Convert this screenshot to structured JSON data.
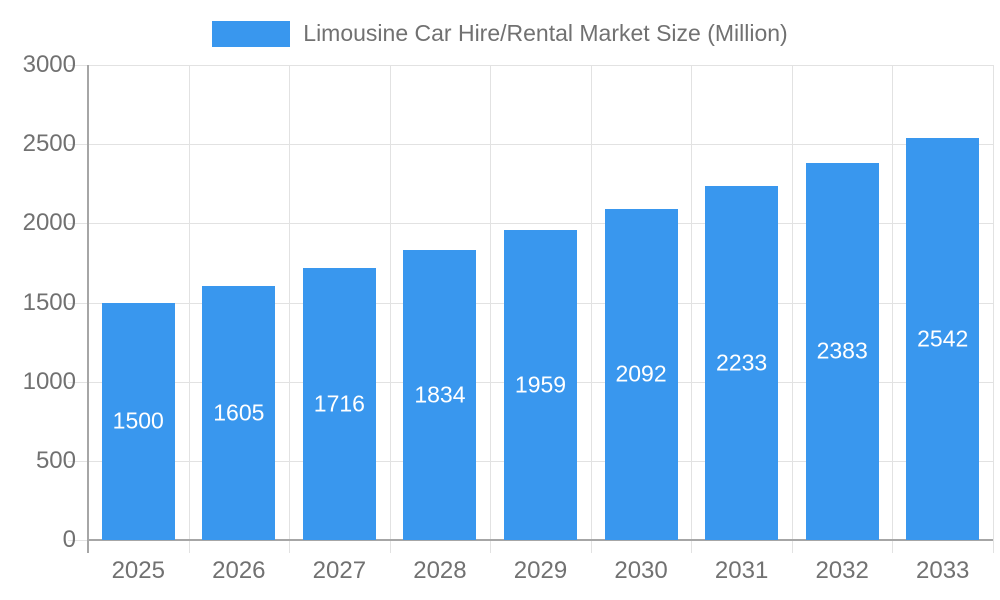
{
  "legend": {
    "label": "Limousine Car Hire/Rental Market Size (Million)"
  },
  "chart_data": {
    "type": "bar",
    "title": "Limousine Car Hire/Rental Market Size (Million)",
    "categories": [
      "2025",
      "2026",
      "2027",
      "2028",
      "2029",
      "2030",
      "2031",
      "2032",
      "2033"
    ],
    "values": [
      1500,
      1605,
      1716,
      1834,
      1959,
      2092,
      2233,
      2383,
      2542
    ],
    "xlabel": "",
    "ylabel": "",
    "ylim": [
      0,
      3000
    ],
    "yticks": [
      0,
      500,
      1000,
      1500,
      2000,
      2500,
      3000
    ],
    "grid": true,
    "legend_position": "top-center",
    "bar_labels_inside": true,
    "colors": {
      "bar": "#3997ee",
      "bar_label": "#ffffff",
      "axis_text": "#717171",
      "grid": "#e2e2e2",
      "axis_line": "#a6a6a6",
      "legend_text": "#717171",
      "background": "#ffffff"
    }
  }
}
